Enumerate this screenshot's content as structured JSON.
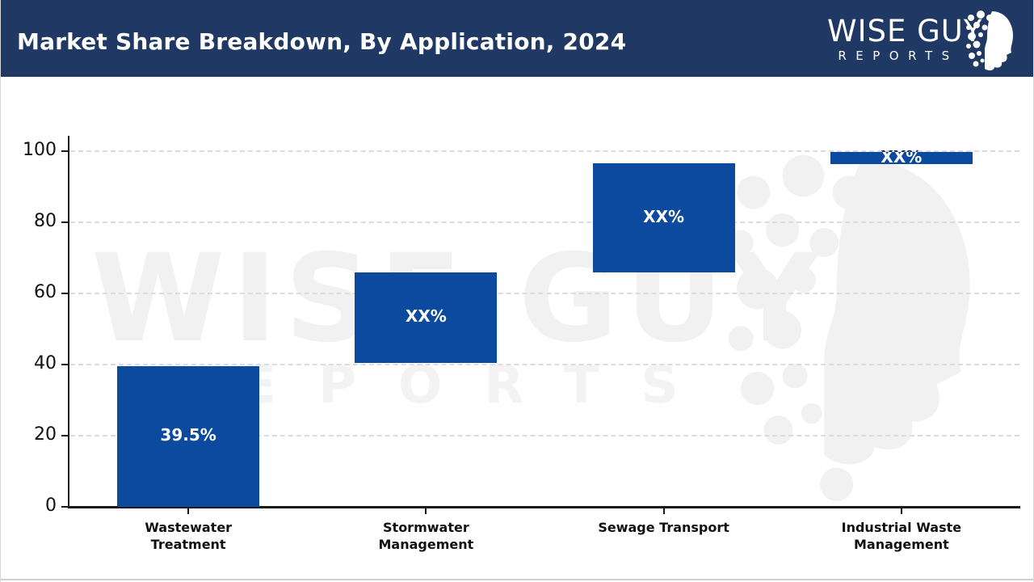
{
  "header": {
    "title": "Market Share Breakdown, By Application, 2024",
    "logo": {
      "line1": "WISE GUY",
      "line2": "REPORTS"
    }
  },
  "watermark": {
    "line1": "WISE GUY",
    "line2": "REPORTS"
  },
  "chart_data": {
    "type": "bar",
    "subtype": "waterfall",
    "title": "Market Share Breakdown, By Application, 2024",
    "categories": [
      "Wastewater Treatment",
      "Stormwater Management",
      "Sewage Transport",
      "Industrial Waste Management"
    ],
    "category_label_lines": [
      [
        "Wastewater",
        "Treatment"
      ],
      [
        "Stormwater",
        "Management"
      ],
      [
        "Sewage Transport"
      ],
      [
        "Industrial Waste",
        "Management"
      ]
    ],
    "segments": [
      {
        "category": "Wastewater Treatment",
        "start": 0,
        "end": 39.5,
        "label": "39.5%"
      },
      {
        "category": "Stormwater Management",
        "start": 40.4,
        "end": 65.9,
        "label": "XX%"
      },
      {
        "category": "Sewage Transport",
        "start": 65.9,
        "end": 96.5,
        "label": "XX%"
      },
      {
        "category": "Industrial Waste Management",
        "start": 96.3,
        "end": 99.7,
        "label": "XX%"
      }
    ],
    "yticks": [
      0,
      20,
      40,
      60,
      80,
      100
    ],
    "ylim": [
      0,
      104
    ],
    "grid": "horizontal-dashed",
    "legend": "none",
    "xlabel": "",
    "ylabel": "",
    "colors": {
      "bar": "#0b4a9f",
      "bar_label_inside": "#ffffff",
      "bar_label_outside": "#1b2a55",
      "grid": "#dcdcdc",
      "axis": "#1a1a1a",
      "header_bg": "#1f3864",
      "header_text": "#ffffff",
      "watermark": "#f1f1f1"
    }
  }
}
